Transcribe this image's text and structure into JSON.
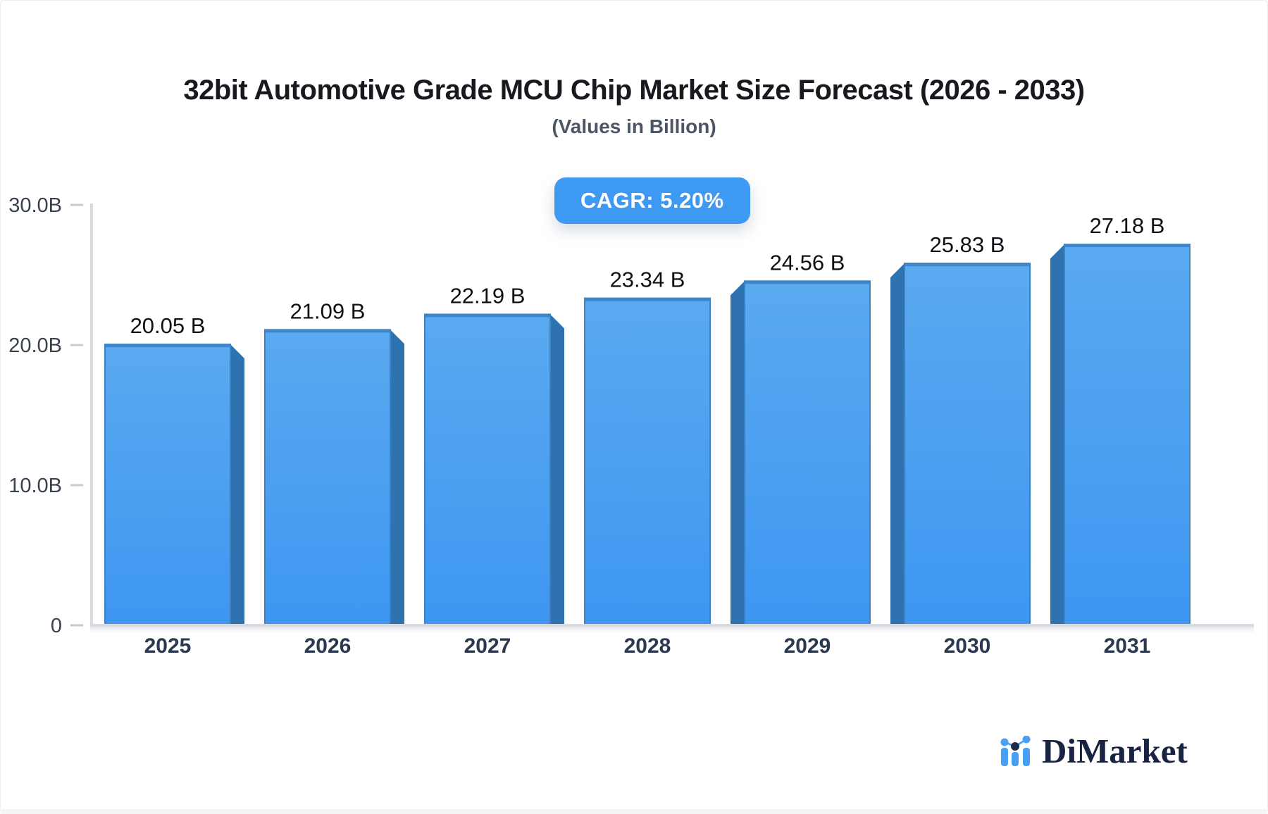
{
  "badge": {
    "label": "CAGR: 5.20%"
  },
  "branding": {
    "name": "DiMarket",
    "icon": "bar-line-chart-icon"
  },
  "chart_data": {
    "type": "bar",
    "title": "32bit Automotive Grade MCU Chip Market Size Forecast (2026 - 2033)",
    "subtitle": "(Values in Billion)",
    "categories": [
      "2025",
      "2026",
      "2027",
      "2028",
      "2029",
      "2030",
      "2031"
    ],
    "values": [
      20.05,
      21.09,
      22.19,
      23.34,
      24.56,
      25.83,
      27.18
    ],
    "value_labels": [
      "20.05 B",
      "21.09 B",
      "22.19 B",
      "23.34 B",
      "24.56 B",
      "25.83 B",
      "27.18 B"
    ],
    "xlabel": "",
    "ylabel": "",
    "ylim": [
      0,
      30
    ],
    "yticks": [
      {
        "value": 0,
        "label": "0"
      },
      {
        "value": 10,
        "label": "10.0B"
      },
      {
        "value": 20,
        "label": "20.0B"
      },
      {
        "value": 30,
        "label": "30.0B"
      }
    ],
    "grid": false,
    "legend": "none",
    "bar_style": "3d-extruded",
    "colors": {
      "face_top": "#5aaaf0",
      "face_bottom": "#3e96f1",
      "face_edge": "#3c82c6",
      "top_edge": "#3f86cd",
      "side": "#2e72b0",
      "axis": "#d8dbdf",
      "tick": "#c6ccd3",
      "y_label": "#39414f",
      "x_label": "#2c3850",
      "value_label": "#0d1014",
      "accent": "#3e99f3",
      "logo_blue": "#47a0f4",
      "logo_navy": "#1d2b4a"
    }
  }
}
